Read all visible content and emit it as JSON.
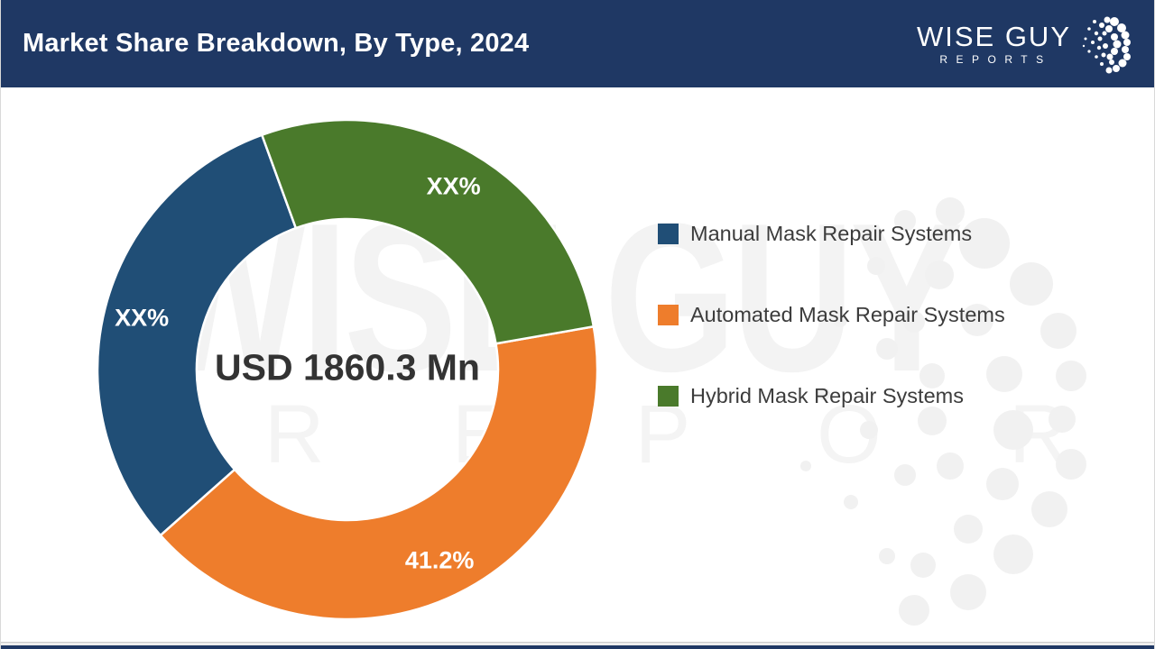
{
  "header": {
    "title": "Market Share Breakdown, By Type, 2024",
    "bg_color": "#1f3864",
    "logo": {
      "line1": "WISE GUY",
      "line2": "REPORTS"
    }
  },
  "chart_data": {
    "type": "pie",
    "subtype": "donut",
    "title": "Market Share Breakdown, By Type, 2024",
    "center_label": "USD 1860.3 Mn",
    "categories": [
      "Manual Mask Repair Systems",
      "Automated Mask Repair Systems",
      "Hybrid Mask Repair Systems"
    ],
    "slices": [
      {
        "name": "Manual Mask Repair Systems",
        "label": "XX%",
        "value_pct_est": 31.0,
        "color": "#204e76"
      },
      {
        "name": "Automated Mask Repair Systems",
        "label": "41.2%",
        "value_pct_est": 41.2,
        "color": "#ee7d2c"
      },
      {
        "name": "Hybrid Mask Repair Systems",
        "label": "XX%",
        "value_pct_est": 27.8,
        "color": "#4a7a2b"
      }
    ],
    "start_angle_deg": 110,
    "direction": "counterclockwise",
    "legend_position": "right",
    "slice_edge_color": "#ffffff"
  },
  "watermark": {
    "line1": "WISE GUY",
    "line2": "R E P O R T S"
  },
  "footer": {
    "bar_color": "#1f3864"
  }
}
